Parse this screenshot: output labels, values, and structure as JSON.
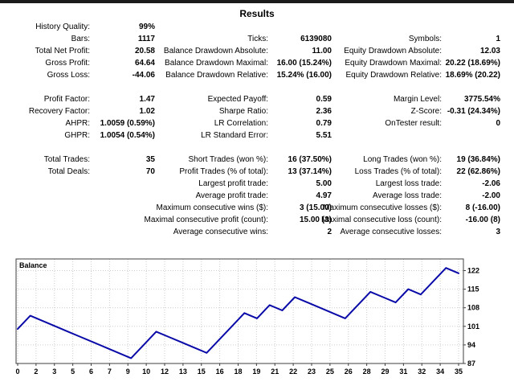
{
  "header": {
    "title": "Results",
    "top_bar_color": "#1b1b1b"
  },
  "stats": {
    "sections": [
      {
        "rows": [
          [
            "History Quality:",
            "99%",
            "",
            "",
            "",
            ""
          ],
          [
            "Bars:",
            "1117",
            "Ticks:",
            "6139080",
            "Symbols:",
            "1"
          ],
          [
            "Total Net Profit:",
            "20.58",
            "Balance Drawdown Absolute:",
            "11.00",
            "Equity Drawdown Absolute:",
            "12.03"
          ],
          [
            "Gross Profit:",
            "64.64",
            "Balance Drawdown Maximal:",
            "16.00 (15.24%)",
            "Equity Drawdown Maximal:",
            "20.22 (18.69%)"
          ],
          [
            "Gross Loss:",
            "-44.06",
            "Balance Drawdown Relative:",
            "15.24% (16.00)",
            "Equity Drawdown Relative:",
            "18.69% (20.22)"
          ]
        ]
      },
      {
        "rows": [
          [
            "Profit Factor:",
            "1.47",
            "Expected Payoff:",
            "0.59",
            "Margin Level:",
            "3775.54%"
          ],
          [
            "Recovery Factor:",
            "1.02",
            "Sharpe Ratio:",
            "2.36",
            "Z-Score:",
            "-0.31 (24.34%)"
          ],
          [
            "AHPR:",
            "1.0059 (0.59%)",
            "LR Correlation:",
            "0.79",
            "OnTester result:",
            "0"
          ],
          [
            "GHPR:",
            "1.0054 (0.54%)",
            "LR Standard Error:",
            "5.51",
            "",
            ""
          ]
        ]
      },
      {
        "rows": [
          [
            "Total Trades:",
            "35",
            "Short Trades (won %):",
            "16 (37.50%)",
            "Long Trades (won %):",
            "19 (36.84%)"
          ],
          [
            "Total Deals:",
            "70",
            "Profit Trades (% of total):",
            "13 (37.14%)",
            "Loss Trades (% of total):",
            "22 (62.86%)"
          ],
          [
            "",
            "",
            "Largest profit trade:",
            "5.00",
            "Largest loss trade:",
            "-2.06"
          ],
          [
            "",
            "",
            "Average profit trade:",
            "4.97",
            "Average loss trade:",
            "-2.00"
          ],
          [
            "",
            "",
            "Maximum consecutive wins ($):",
            "3 (15.00)",
            "Maximum consecutive losses ($):",
            "8 (-16.00)"
          ],
          [
            "",
            "",
            "Maximal consecutive profit (count):",
            "15.00 (3)",
            "Maximal consecutive loss (count):",
            "-16.00 (8)"
          ],
          [
            "",
            "",
            "Average consecutive wins:",
            "2",
            "Average consecutive losses:",
            "3"
          ]
        ]
      }
    ]
  },
  "chart_data": {
    "type": "line",
    "title": "Balance",
    "x": [
      0,
      1,
      2,
      3,
      4,
      5,
      6,
      7,
      8,
      9,
      10,
      11,
      12,
      13,
      14,
      15,
      16,
      17,
      18,
      19,
      20,
      21,
      22,
      23,
      24,
      25,
      26,
      27,
      28,
      29,
      30,
      31,
      32,
      33,
      34,
      35
    ],
    "values": [
      100,
      105,
      103,
      101,
      99,
      97,
      95,
      93,
      91,
      89,
      94,
      99,
      97,
      95,
      93,
      91,
      96,
      101,
      106,
      104,
      109,
      107,
      112,
      110,
      108,
      106,
      104,
      109,
      114,
      112,
      110,
      115,
      113,
      118,
      123,
      121
    ],
    "x_tick_labels": [
      "0",
      "2",
      "3",
      "5",
      "6",
      "7",
      "9",
      "10",
      "12",
      "13",
      "15",
      "16",
      "18",
      "19",
      "21",
      "22",
      "23",
      "25",
      "26",
      "28",
      "29",
      "31",
      "32",
      "34",
      "35"
    ],
    "y_ticks": [
      122,
      115,
      108,
      101,
      94,
      87
    ],
    "ylim": [
      87,
      126.4
    ],
    "xlim": [
      0,
      35.4
    ],
    "grid": true,
    "legend_position": "top-left",
    "line_color": "#0a0aa8",
    "grid_color": "#cdcdcd",
    "border_color": "#3f3f3f"
  }
}
